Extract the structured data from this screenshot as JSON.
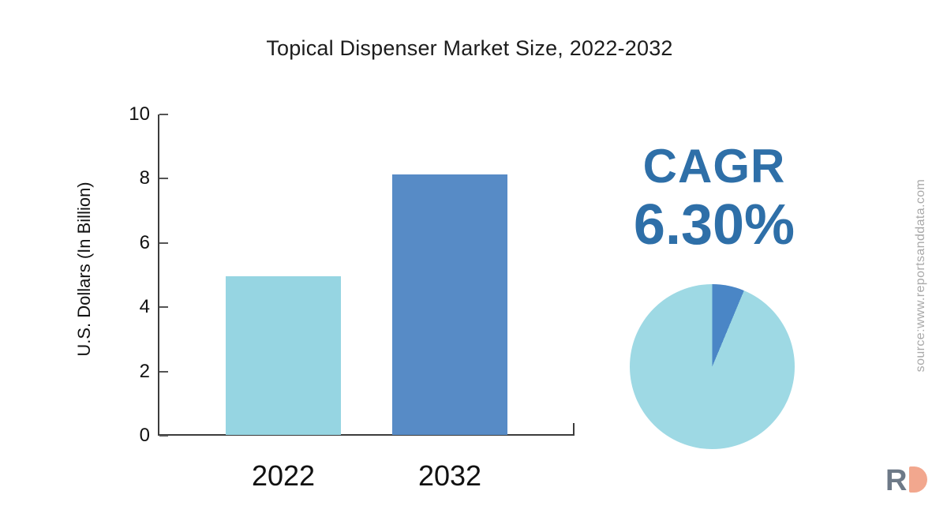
{
  "title": "Topical Dispenser Market Size, 2022-2032",
  "chart_data": [
    {
      "type": "bar",
      "title": "Topical Dispenser Market Size, 2022-2032",
      "categories": [
        "2022",
        "2032"
      ],
      "values": [
        4.93,
        8.1
      ],
      "xlabel": "",
      "ylabel": "U.S. Dollars (In Billion)",
      "ylim": [
        0,
        10
      ],
      "yticks": [
        0,
        2,
        4,
        6,
        8,
        10
      ],
      "bar_colors": [
        "#96d5e2",
        "#578bc6"
      ],
      "grid": false,
      "legend": "none"
    },
    {
      "type": "pie",
      "slices": [
        {
          "name": "cagr-share",
          "value": 6.3,
          "color": "#4a86c6"
        },
        {
          "name": "remainder",
          "value": 93.7,
          "color": "#9ed9e4"
        }
      ],
      "start_angle_deg": 0,
      "direction": "clockwise"
    }
  ],
  "cagr_annotation": {
    "label": "CAGR",
    "value": "6.30%",
    "color": "#2e6fa8"
  },
  "source_watermark": "source:www.reportsanddata.com",
  "logo": {
    "letter": "R",
    "r_color": "#6d7987",
    "d_color": "#f2a78e"
  }
}
